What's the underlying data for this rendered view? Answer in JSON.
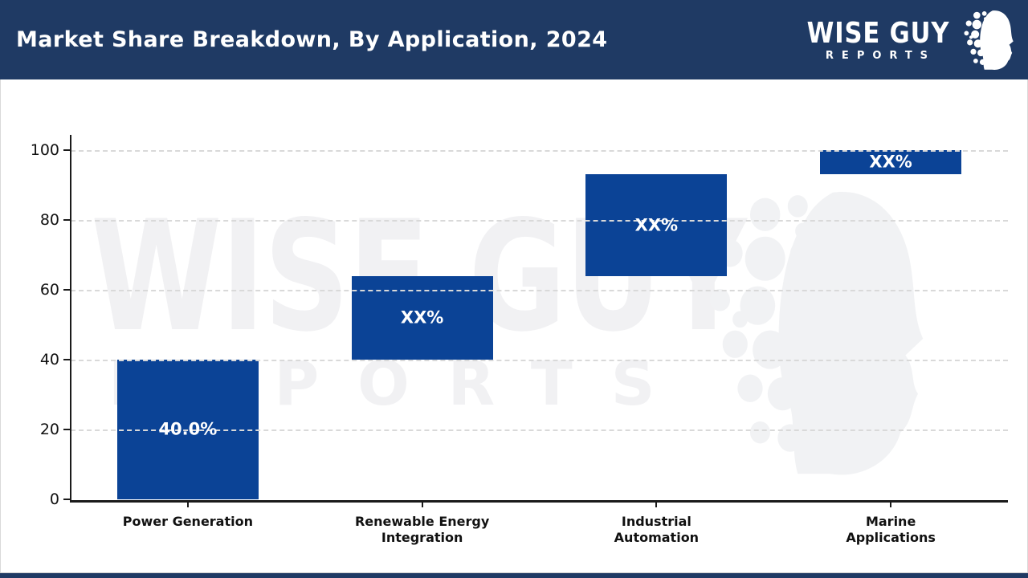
{
  "header": {
    "title": "Market Share Breakdown, By Application, 2024",
    "logo": {
      "primary": "WISE GUY",
      "secondary": "REPORTS"
    }
  },
  "watermark": {
    "primary": "WISE GUY",
    "secondary": "REPORTS"
  },
  "chart_data": {
    "type": "bar",
    "variant": "waterfall",
    "title": "Market Share Breakdown, By Application, 2024",
    "categories": [
      "Power Generation",
      "Renewable Energy\nIntegration",
      "Industrial\nAutomation",
      "Marine\nApplications"
    ],
    "segments": [
      {
        "start": 0,
        "end": 40,
        "label": "40.0%"
      },
      {
        "start": 40,
        "end": 64,
        "label": "XX%"
      },
      {
        "start": 64,
        "end": 93,
        "label": "XX%"
      },
      {
        "start": 93,
        "end": 100,
        "label": "XX%"
      }
    ],
    "yticks": [
      0,
      20,
      40,
      60,
      80,
      100
    ],
    "ylim": [
      0,
      105
    ],
    "grid": "horizontal-dashed",
    "legend": "none",
    "xlabel": "",
    "ylabel": ""
  },
  "colors": {
    "header_bg": "#1F3A64",
    "bar": "#0B4396",
    "bar_label": "#ffffff",
    "gridline": "#d9d9d9",
    "axis": "#1a1a1a",
    "watermark": "#f1f1f3",
    "watermark_head": "#f1f2f4"
  }
}
